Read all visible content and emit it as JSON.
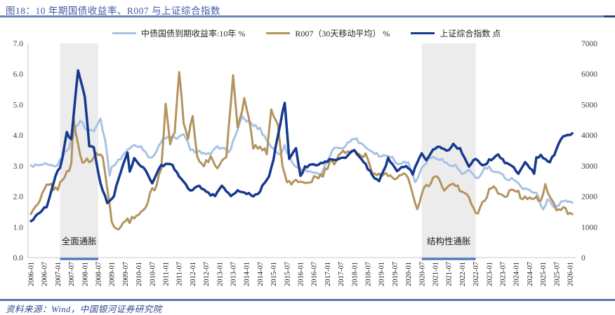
{
  "header": {
    "title": "图18：10 年期国债收益率、R007 与上证综合指数"
  },
  "footer": {
    "source": "资料来源：Wind，中国银河证券研究院"
  },
  "colors": {
    "title_blue": "#4059A4",
    "rule_blue": "#7383B3",
    "footer_rule_blue": "#6076AB",
    "region_fill": "#ECECEC",
    "region_underline": "#4472C4",
    "axis_line": "#C9C9C9",
    "axis_text": "#404040",
    "tick_text": "#1A1A1A"
  },
  "chart_data": {
    "type": "line",
    "title": "",
    "xlabel": "",
    "ylabel_left": "%",
    "ylabel_right": "点",
    "grid": false,
    "legend_position": "top",
    "left_axis": {
      "min": 0,
      "max": 7,
      "step": 1,
      "labels": [
        "0.0",
        "1.0",
        "2.0",
        "3.0",
        "4.0",
        "5.0",
        "6.0",
        "7.0"
      ]
    },
    "right_axis": {
      "min": 0,
      "max": 7000,
      "step": 1000,
      "labels": [
        "0",
        "1000",
        "2000",
        "3000",
        "4000",
        "5000",
        "6000",
        "7000"
      ]
    },
    "x_axis": {
      "start": "2006-01",
      "end": "2026-01",
      "tick_interval_months": 6,
      "labels": [
        "2006-01",
        "2006-07",
        "2007-01",
        "2007-07",
        "2008-01",
        "2008-07",
        "2009-01",
        "2009-07",
        "2010-01",
        "2010-07",
        "2011-01",
        "2011-07",
        "2012-01",
        "2012-07",
        "2013-01",
        "2013-07",
        "2014-01",
        "2014-07",
        "2015-01",
        "2015-07",
        "2016-01",
        "2016-07",
        "2017-01",
        "2017-07",
        "2018-01",
        "2018-07",
        "2019-01",
        "2019-07",
        "2020-01",
        "2020-07",
        "2021-01",
        "2021-07",
        "2022-01",
        "2022-07",
        "2023-01",
        "2023-07",
        "2024-01",
        "2024-07",
        "2025-01",
        "2025-07",
        "2026-01"
      ]
    },
    "regions": [
      {
        "label": "全面通胀",
        "start": "2007-02",
        "end": "2008-07"
      },
      {
        "label": "结构性通胀",
        "start": "2020-07",
        "end": "2022-07"
      }
    ],
    "series": [
      {
        "name": "中债国债到期收益率:10年 %",
        "axis": "left",
        "color": "#A9C2E4",
        "width": 3,
        "seed": 1,
        "jitter": 0.06,
        "points": [
          [
            "2006-01",
            2.95
          ],
          [
            "2006-03",
            3.0
          ],
          [
            "2006-06",
            3.05
          ],
          [
            "2006-09",
            2.95
          ],
          [
            "2006-12",
            3.0
          ],
          [
            "2007-03",
            3.25
          ],
          [
            "2007-06",
            3.65
          ],
          [
            "2007-09",
            4.25
          ],
          [
            "2007-11",
            4.45
          ],
          [
            "2008-02",
            4.2
          ],
          [
            "2008-05",
            4.15
          ],
          [
            "2008-08",
            4.55
          ],
          [
            "2008-10",
            3.9
          ],
          [
            "2008-12",
            2.7
          ],
          [
            "2009-02",
            3.05
          ],
          [
            "2009-06",
            3.35
          ],
          [
            "2009-11",
            3.7
          ],
          [
            "2010-02",
            3.6
          ],
          [
            "2010-07",
            3.25
          ],
          [
            "2010-12",
            3.9
          ],
          [
            "2011-02",
            3.95
          ],
          [
            "2011-06",
            3.85
          ],
          [
            "2011-09",
            4.1
          ],
          [
            "2011-12",
            3.45
          ],
          [
            "2012-03",
            3.55
          ],
          [
            "2012-07",
            3.3
          ],
          [
            "2012-11",
            3.55
          ],
          [
            "2013-02",
            3.6
          ],
          [
            "2013-05",
            3.45
          ],
          [
            "2013-08",
            3.95
          ],
          [
            "2013-11",
            4.6
          ],
          [
            "2014-01",
            4.5
          ],
          [
            "2014-04",
            4.3
          ],
          [
            "2014-07",
            4.25
          ],
          [
            "2014-10",
            3.8
          ],
          [
            "2015-01",
            3.55
          ],
          [
            "2015-04",
            3.4
          ],
          [
            "2015-06",
            3.6
          ],
          [
            "2015-10",
            3.05
          ],
          [
            "2016-01",
            2.85
          ],
          [
            "2016-04",
            2.9
          ],
          [
            "2016-08",
            2.7
          ],
          [
            "2016-10",
            2.7
          ],
          [
            "2017-02",
            3.3
          ],
          [
            "2017-05",
            3.65
          ],
          [
            "2017-09",
            3.6
          ],
          [
            "2017-12",
            3.9
          ],
          [
            "2018-01",
            3.95
          ],
          [
            "2018-04",
            3.7
          ],
          [
            "2018-08",
            3.55
          ],
          [
            "2018-12",
            3.3
          ],
          [
            "2019-04",
            3.4
          ],
          [
            "2019-08",
            3.05
          ],
          [
            "2019-11",
            3.2
          ],
          [
            "2020-01",
            3.05
          ],
          [
            "2020-04",
            2.5
          ],
          [
            "2020-07",
            2.9
          ],
          [
            "2020-11",
            3.3
          ],
          [
            "2021-02",
            3.25
          ],
          [
            "2021-06",
            3.1
          ],
          [
            "2021-10",
            2.95
          ],
          [
            "2022-01",
            2.75
          ],
          [
            "2022-04",
            2.8
          ],
          [
            "2022-08",
            2.6
          ],
          [
            "2022-11",
            2.9
          ],
          [
            "2023-01",
            2.9
          ],
          [
            "2023-04",
            2.8
          ],
          [
            "2023-08",
            2.6
          ],
          [
            "2023-12",
            2.6
          ],
          [
            "2024-03",
            2.3
          ],
          [
            "2024-07",
            2.2
          ],
          [
            "2024-10",
            2.1
          ],
          [
            "2024-12",
            1.75
          ],
          [
            "2025-01",
            1.65
          ],
          [
            "2025-03",
            1.85
          ],
          [
            "2025-06",
            1.65
          ],
          [
            "2025-09",
            1.85
          ],
          [
            "2025-12",
            1.8
          ],
          [
            "2026-02",
            1.82
          ]
        ]
      },
      {
        "name": "R007（30天移动平均） %",
        "axis": "left",
        "color": "#B3945E",
        "width": 3,
        "seed": 2,
        "jitter": 0.09,
        "points": [
          [
            "2006-01",
            1.45
          ],
          [
            "2006-04",
            1.75
          ],
          [
            "2006-08",
            2.3
          ],
          [
            "2006-10",
            2.4
          ],
          [
            "2007-01",
            2.2
          ],
          [
            "2007-04",
            2.7
          ],
          [
            "2007-07",
            3.1
          ],
          [
            "2007-08",
            4.45
          ],
          [
            "2007-10",
            3.6
          ],
          [
            "2007-12",
            3.1
          ],
          [
            "2008-02",
            3.3
          ],
          [
            "2008-04",
            3.05
          ],
          [
            "2008-06",
            3.45
          ],
          [
            "2008-09",
            3.3
          ],
          [
            "2008-11",
            2.2
          ],
          [
            "2009-01",
            1.2
          ],
          [
            "2009-04",
            0.95
          ],
          [
            "2009-08",
            1.2
          ],
          [
            "2009-12",
            1.4
          ],
          [
            "2010-03",
            1.5
          ],
          [
            "2010-06",
            2.1
          ],
          [
            "2010-09",
            2.3
          ],
          [
            "2010-11",
            3.0
          ],
          [
            "2011-01",
            5.0
          ],
          [
            "2011-03",
            3.7
          ],
          [
            "2011-05",
            4.1
          ],
          [
            "2011-07",
            6.2
          ],
          [
            "2011-09",
            4.4
          ],
          [
            "2011-11",
            3.9
          ],
          [
            "2012-01",
            4.7
          ],
          [
            "2012-03",
            3.3
          ],
          [
            "2012-06",
            3.0
          ],
          [
            "2012-09",
            3.3
          ],
          [
            "2012-12",
            2.9
          ],
          [
            "2013-02",
            3.2
          ],
          [
            "2013-04",
            3.3
          ],
          [
            "2013-07",
            5.9
          ],
          [
            "2013-09",
            4.3
          ],
          [
            "2013-12",
            5.2
          ],
          [
            "2014-02",
            4.6
          ],
          [
            "2014-04",
            3.6
          ],
          [
            "2014-07",
            3.7
          ],
          [
            "2014-10",
            3.3
          ],
          [
            "2014-12",
            4.9
          ],
          [
            "2015-03",
            4.4
          ],
          [
            "2015-05",
            2.9
          ],
          [
            "2015-07",
            2.5
          ],
          [
            "2015-12",
            2.45
          ],
          [
            "2016-06",
            2.5
          ],
          [
            "2016-12",
            2.8
          ],
          [
            "2017-03",
            3.1
          ],
          [
            "2017-06",
            3.3
          ],
          [
            "2017-12",
            3.55
          ],
          [
            "2018-03",
            3.3
          ],
          [
            "2018-06",
            3.4
          ],
          [
            "2018-09",
            2.8
          ],
          [
            "2018-12",
            2.7
          ],
          [
            "2019-03",
            2.7
          ],
          [
            "2019-06",
            2.6
          ],
          [
            "2019-09",
            2.7
          ],
          [
            "2020-01",
            2.6
          ],
          [
            "2020-05",
            1.55
          ],
          [
            "2020-08",
            2.2
          ],
          [
            "2020-11",
            2.5
          ],
          [
            "2021-01",
            2.6
          ],
          [
            "2021-06",
            2.25
          ],
          [
            "2021-09",
            2.35
          ],
          [
            "2021-12",
            2.3
          ],
          [
            "2022-02",
            2.1
          ],
          [
            "2022-05",
            1.7
          ],
          [
            "2022-08",
            1.5
          ],
          [
            "2022-11",
            1.8
          ],
          [
            "2023-01",
            2.2
          ],
          [
            "2023-03",
            2.3
          ],
          [
            "2023-06",
            2.0
          ],
          [
            "2023-09",
            2.1
          ],
          [
            "2023-11",
            2.3
          ],
          [
            "2024-01",
            2.1
          ],
          [
            "2024-04",
            2.0
          ],
          [
            "2024-07",
            1.9
          ],
          [
            "2024-10",
            2.0
          ],
          [
            "2024-12",
            1.9
          ],
          [
            "2025-02",
            2.3
          ],
          [
            "2025-04",
            1.9
          ],
          [
            "2025-07",
            1.65
          ],
          [
            "2025-10",
            1.55
          ],
          [
            "2026-02",
            1.5
          ]
        ]
      },
      {
        "name": "上证综合指数 点",
        "axis": "right",
        "color": "#16398F",
        "width": 3.5,
        "seed": 3,
        "jitter": 45,
        "points": [
          [
            "2006-01",
            1180
          ],
          [
            "2006-04",
            1440
          ],
          [
            "2006-08",
            1660
          ],
          [
            "2006-12",
            2680
          ],
          [
            "2007-02",
            2880
          ],
          [
            "2007-05",
            4110
          ],
          [
            "2007-07",
            3850
          ],
          [
            "2007-10",
            6090
          ],
          [
            "2008-01",
            5280
          ],
          [
            "2008-03",
            3580
          ],
          [
            "2008-05",
            3620
          ],
          [
            "2008-08",
            2400
          ],
          [
            "2008-11",
            1750
          ],
          [
            "2009-02",
            2080
          ],
          [
            "2009-08",
            3480
          ],
          [
            "2009-09",
            2800
          ],
          [
            "2009-11",
            3200
          ],
          [
            "2010-04",
            2870
          ],
          [
            "2010-07",
            2400
          ],
          [
            "2010-11",
            3050
          ],
          [
            "2011-04",
            3000
          ],
          [
            "2011-09",
            2480
          ],
          [
            "2011-12",
            2200
          ],
          [
            "2012-03",
            2350
          ],
          [
            "2012-07",
            2150
          ],
          [
            "2012-11",
            2000
          ],
          [
            "2013-02",
            2400
          ],
          [
            "2013-06",
            1980
          ],
          [
            "2013-09",
            2200
          ],
          [
            "2014-01",
            2050
          ],
          [
            "2014-06",
            2050
          ],
          [
            "2014-11",
            2650
          ],
          [
            "2015-01",
            3250
          ],
          [
            "2015-06",
            5100
          ],
          [
            "2015-08",
            3200
          ],
          [
            "2015-11",
            3550
          ],
          [
            "2016-01",
            2700
          ],
          [
            "2016-03",
            2950
          ],
          [
            "2016-08",
            3050
          ],
          [
            "2017-01",
            3150
          ],
          [
            "2017-04",
            3250
          ],
          [
            "2017-07",
            3200
          ],
          [
            "2017-11",
            3400
          ],
          [
            "2018-01",
            3520
          ],
          [
            "2018-06",
            3050
          ],
          [
            "2018-10",
            2550
          ],
          [
            "2018-12",
            2500
          ],
          [
            "2019-04",
            3200
          ],
          [
            "2019-08",
            2850
          ],
          [
            "2019-12",
            3000
          ],
          [
            "2020-03",
            2770
          ],
          [
            "2020-07",
            3350
          ],
          [
            "2020-09",
            3250
          ],
          [
            "2021-02",
            3650
          ],
          [
            "2021-07",
            3450
          ],
          [
            "2021-09",
            3670
          ],
          [
            "2021-12",
            3600
          ],
          [
            "2022-04",
            2950
          ],
          [
            "2022-07",
            3280
          ],
          [
            "2022-10",
            2950
          ],
          [
            "2023-01",
            3200
          ],
          [
            "2023-05",
            3350
          ],
          [
            "2023-08",
            3150
          ],
          [
            "2023-12",
            2950
          ],
          [
            "2024-02",
            2750
          ],
          [
            "2024-05",
            3130
          ],
          [
            "2024-09",
            2720
          ],
          [
            "2024-10",
            3320
          ],
          [
            "2024-12",
            3350
          ],
          [
            "2025-01",
            3200
          ],
          [
            "2025-04",
            3150
          ],
          [
            "2025-06",
            3400
          ],
          [
            "2025-08",
            3700
          ],
          [
            "2025-10",
            3950
          ],
          [
            "2026-02",
            4100
          ]
        ]
      }
    ]
  }
}
